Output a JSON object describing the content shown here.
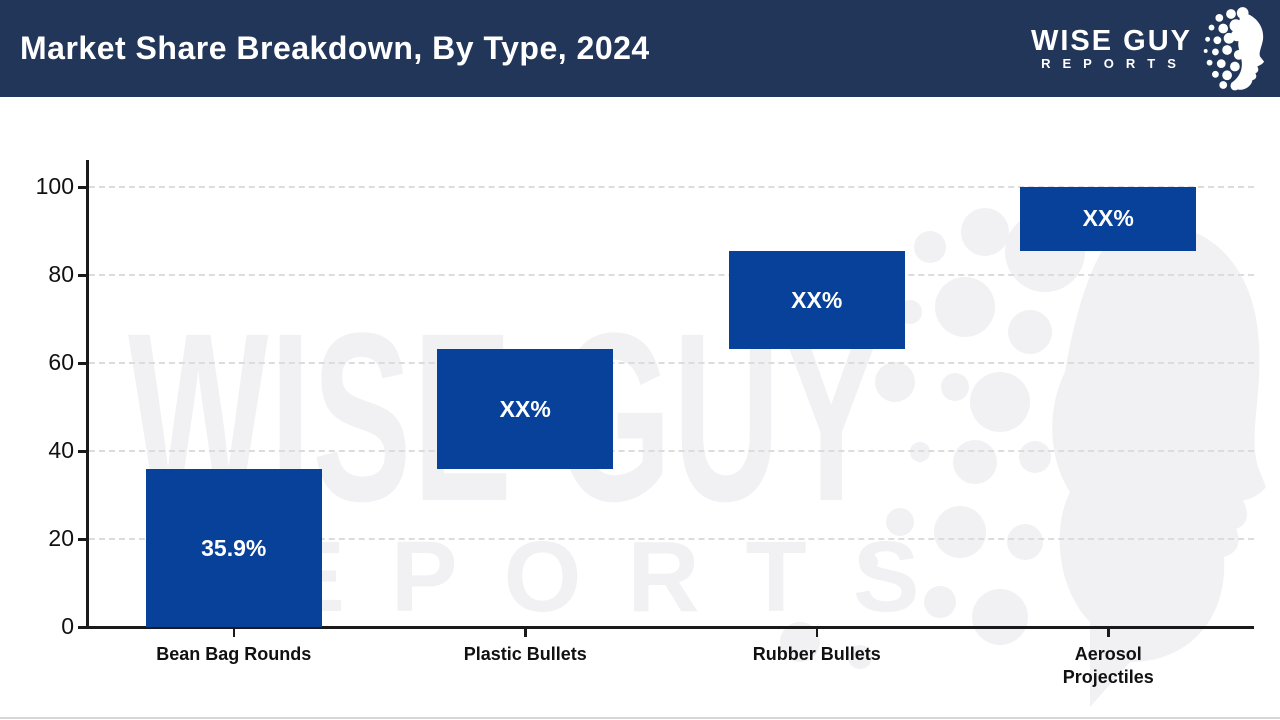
{
  "header": {
    "title": "Market Share Breakdown, By Type, 2024",
    "bg_color": "#223659",
    "logo": {
      "line1": "WISE GUY",
      "line2": "REPORTS"
    }
  },
  "watermark": {
    "line1": "WISE GUY",
    "line2": "REPORTS"
  },
  "chart_data": {
    "type": "bar",
    "subtype": "waterfall-stacked-segments",
    "title": "Market Share Breakdown, By Type, 2024",
    "categories": [
      "Bean Bag Rounds",
      "Plastic Bullets",
      "Rubber Bullets",
      "Aerosol\nProjectiles"
    ],
    "segments": [
      {
        "category": "Bean Bag Rounds",
        "start": 0,
        "end": 35.9,
        "label": "35.9%"
      },
      {
        "category": "Plastic Bullets",
        "start": 35.9,
        "end": 63.1,
        "label": "XX%"
      },
      {
        "category": "Rubber Bullets",
        "start": 63.1,
        "end": 85.5,
        "label": "XX%"
      },
      {
        "category": "Aerosol Projectiles",
        "start": 85.5,
        "end": 100,
        "label": "XX%"
      }
    ],
    "yticks": [
      0,
      20,
      40,
      60,
      80,
      100
    ],
    "ylim": [
      0,
      106
    ],
    "xlabel": "",
    "ylabel": "",
    "grid": "horizontal-dashed",
    "bar_color": "#07419a",
    "bar_label_color": "#ffffff",
    "axis_color": "#1a1a1a",
    "grid_color": "#dcdcdc"
  }
}
